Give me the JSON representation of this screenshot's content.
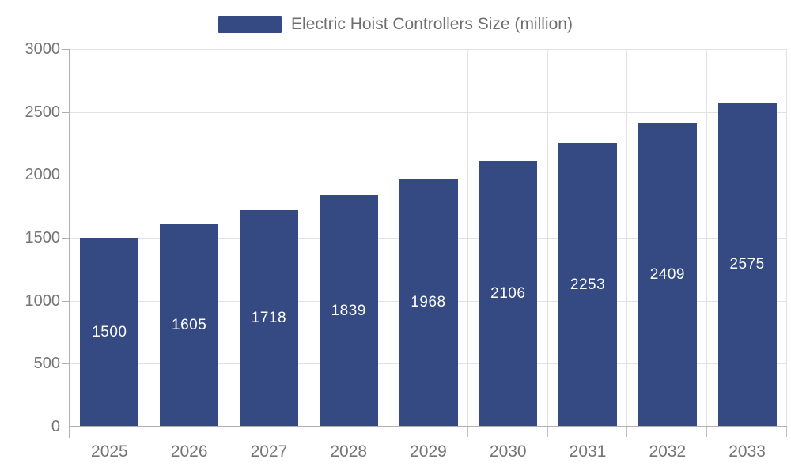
{
  "chart_data": {
    "type": "bar",
    "title": "Electric Hoist Controllers Size (million)",
    "series_name": "Electric Hoist Controllers Size (million)",
    "categories": [
      "2025",
      "2026",
      "2027",
      "2028",
      "2029",
      "2030",
      "2031",
      "2032",
      "2033"
    ],
    "values": [
      1500,
      1605,
      1718,
      1839,
      1968,
      2106,
      2253,
      2409,
      2575
    ],
    "xlabel": "",
    "ylabel": "",
    "ylim": [
      0,
      3000
    ],
    "yticks": [
      0,
      500,
      1000,
      1500,
      2000,
      2500,
      3000
    ],
    "grid": true,
    "legend_position": "top-center",
    "bar_label_position": "inside-middle"
  },
  "colors": {
    "bar": "#354A83",
    "bar_label": "#ffffff",
    "legend_text": "#6e6e6e",
    "axis_text": "#757575",
    "gridline": "#e2e2e2",
    "axis_line": "#b0b0b0",
    "tick": "#c0c0c0",
    "background": "#ffffff"
  }
}
